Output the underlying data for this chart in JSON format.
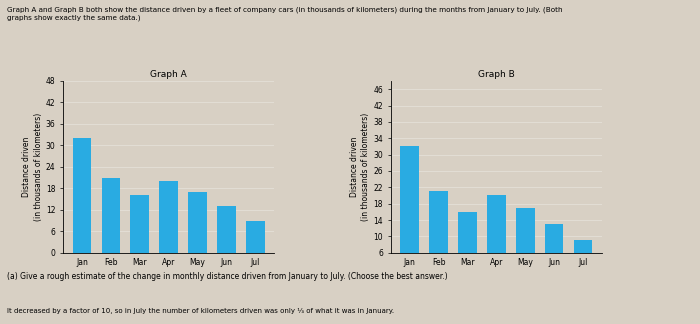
{
  "title_text": "Graph A and Graph B both show the distance driven by a fleet of company cars (in thousands of kilometers) during the months from January to July. (Both\ngraphs show exactly the same data.)",
  "graph_a_title": "Graph A",
  "graph_b_title": "Graph B",
  "ylabel_a": "Distance driven\n(in thousands of kilometers)",
  "ylabel_b": "Distance driven\n(in thousands of kilometers)",
  "months": [
    "Jan",
    "Feb",
    "Mar",
    "Apr",
    "May",
    "Jun",
    "Jul"
  ],
  "values": [
    32,
    21,
    16,
    20,
    17,
    13,
    9
  ],
  "bar_color": "#29ABE2",
  "graph_a_ylim": [
    0,
    48
  ],
  "graph_a_yticks": [
    0,
    6,
    12,
    18,
    24,
    30,
    36,
    42,
    48
  ],
  "graph_b_ylim": [
    6,
    48
  ],
  "graph_b_yticks": [
    6,
    10,
    14,
    18,
    22,
    26,
    30,
    34,
    38,
    42,
    46
  ],
  "background_color": "#d8d0c4",
  "plot_bg_color": "#e8e0d4",
  "question_text": "(a) Give a rough estimate of the change in monthly distance driven from January to July. (Choose the best answer.)",
  "footnote_text": "It decreased by a factor of 10, so in July the number of kilometers driven was only ⅓ of what it was in January."
}
